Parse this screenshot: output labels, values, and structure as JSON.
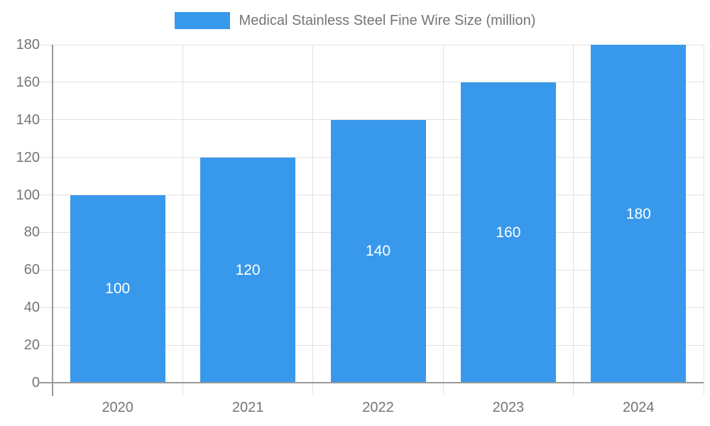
{
  "legend": {
    "label": "Medical Stainless Steel Fine Wire Size (million)"
  },
  "colors": {
    "bar": "#3898EC",
    "bar_label_text": "#FFFFFF",
    "axis_line": "#999999",
    "gridline": "#E1E1E1",
    "axis_text": "#757575"
  },
  "chart_data": {
    "type": "bar",
    "title": "Medical Stainless Steel Fine Wire Size (million)",
    "categories": [
      "2020",
      "2021",
      "2022",
      "2023",
      "2024"
    ],
    "values": [
      100,
      120,
      140,
      160,
      180
    ],
    "series": [
      {
        "name": "Medical Stainless Steel Fine Wire Size (million)",
        "values": [
          100,
          120,
          140,
          160,
          180
        ]
      }
    ],
    "xlabel": "",
    "ylabel": "",
    "ylim": [
      0,
      180
    ],
    "ytick_step": 20,
    "yticks": [
      0,
      20,
      40,
      60,
      80,
      100,
      120,
      140,
      160,
      180
    ],
    "grid": true,
    "legend_position": "top-center",
    "bar_value_labels": "inside-center"
  }
}
